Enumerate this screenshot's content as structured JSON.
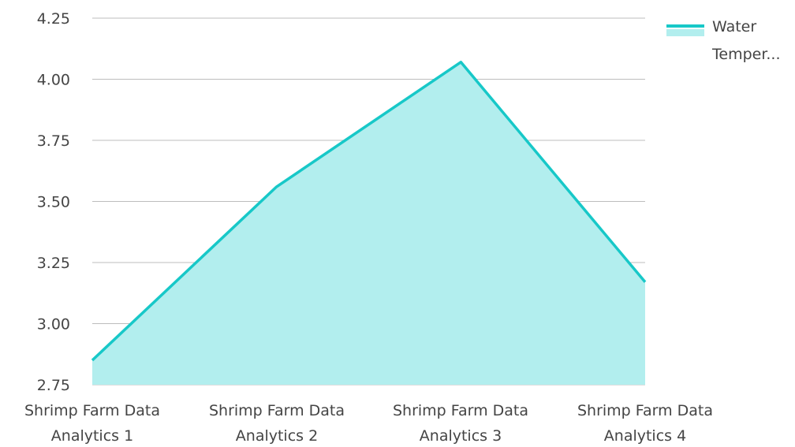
{
  "chart_data": {
    "type": "area",
    "categories": [
      [
        "Shrimp Farm Data",
        "Analytics 1"
      ],
      [
        "Shrimp Farm Data",
        "Analytics 2"
      ],
      [
        "Shrimp Farm Data",
        "Analytics 3"
      ],
      [
        "Shrimp Farm Data",
        "Analytics 4"
      ]
    ],
    "series": [
      {
        "name": "Water Temper...",
        "values": [
          2.85,
          3.56,
          4.07,
          3.17
        ],
        "line_color": "#17c8c8",
        "fill_color": "#b2eeee"
      }
    ],
    "yticks": [
      "2.75",
      "3.00",
      "3.25",
      "3.50",
      "3.75",
      "4.00",
      "4.25"
    ],
    "ylim": [
      2.75,
      4.25
    ],
    "grid": true,
    "legend": {
      "position": "top-right",
      "lines": [
        "Water",
        "Temper..."
      ]
    }
  }
}
